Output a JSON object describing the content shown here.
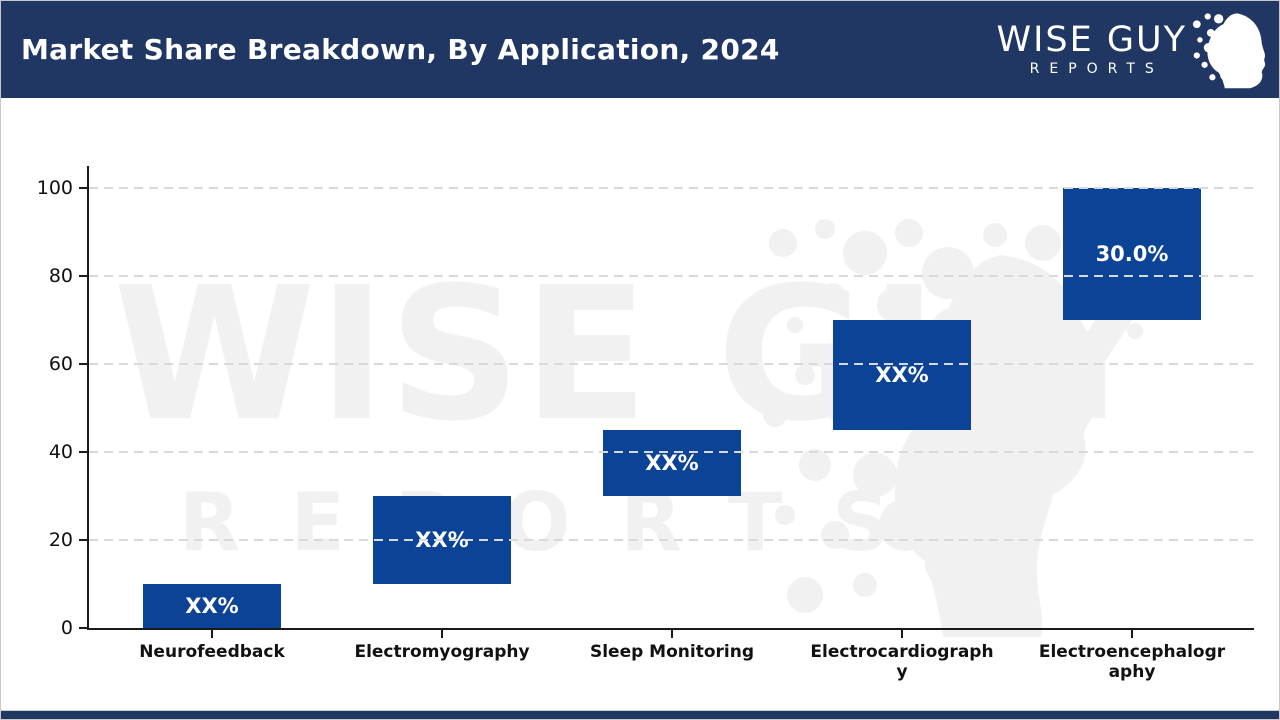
{
  "header": {
    "title": "Market Share Breakdown, By Application, 2024",
    "logo": {
      "brand_line1": "WISE GUY",
      "brand_line2": "REPORTS"
    }
  },
  "watermark": {
    "line1": "WISE GUY",
    "line2": "REPORTS"
  },
  "chart_data": {
    "type": "bar",
    "variant": "floating-waterfall-market-share",
    "title": "Market Share Breakdown, By Application, 2024",
    "categories": [
      "Neurofeedback",
      "Electromyography",
      "Sleep Monitoring",
      "Electrocardiography",
      "Electroencephalography"
    ],
    "xtick_display_lines": [
      [
        "Neurofeedback"
      ],
      [
        "Electromyography"
      ],
      [
        "Sleep Monitoring"
      ],
      [
        "Electrocardiograph",
        "y"
      ],
      [
        "Electroencephalogr",
        "aphy"
      ]
    ],
    "segments": [
      {
        "category": "Neurofeedback",
        "start": 0,
        "end": 10,
        "value_label": "XX%"
      },
      {
        "category": "Electromyography",
        "start": 10,
        "end": 30,
        "value_label": "XX%"
      },
      {
        "category": "Sleep Monitoring",
        "start": 30,
        "end": 45,
        "value_label": "XX%"
      },
      {
        "category": "Electrocardiography",
        "start": 45,
        "end": 70,
        "value_label": "XX%"
      },
      {
        "category": "Electroencephalography",
        "start": 70,
        "end": 100,
        "value_label": "30.0%"
      }
    ],
    "ylim": [
      0,
      100
    ],
    "yticks": [
      0,
      20,
      40,
      60,
      80,
      100
    ],
    "xlabel": "",
    "ylabel": "",
    "grid": {
      "show": true,
      "style": "dashed",
      "color": "#d9d9d9",
      "above_bars": true
    },
    "legend": false,
    "bar_color": "#0b4397",
    "bar_label_color": "#ffffff",
    "axis_color": "#1a1a1a"
  },
  "colors": {
    "header_bg": "#203764",
    "footer_bg": "#203764",
    "watermark": "#f1f1f2"
  }
}
